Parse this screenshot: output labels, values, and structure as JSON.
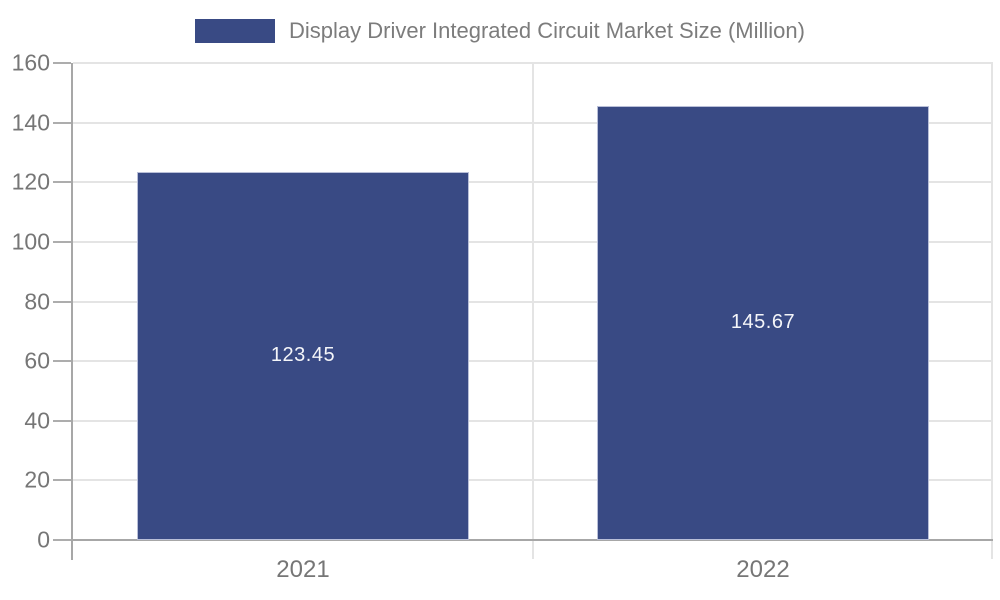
{
  "legend": {
    "label": "Display Driver Integrated Circuit Market Size (Million)"
  },
  "chart_data": {
    "type": "bar",
    "title": "Display Driver Integrated Circuit Market Size (Million)",
    "categories": [
      "2021",
      "2022"
    ],
    "values": [
      123.45,
      145.67
    ],
    "value_labels": [
      "123.45",
      "145.67"
    ],
    "series": [
      {
        "name": "Display Driver Integrated Circuit Market Size (Million)",
        "values": [
          123.45,
          145.67
        ]
      }
    ],
    "xlabel": "",
    "ylabel": "",
    "ylim": [
      0,
      160
    ],
    "yticks": [
      0,
      20,
      40,
      60,
      80,
      100,
      120,
      140,
      160
    ],
    "grid": true,
    "legend_position": "top-center",
    "value_label_position": "inside-center"
  },
  "colors": {
    "bar": "#394A84",
    "bar_border": "#B9BFD8",
    "grid": "#E4E4E4",
    "axis": "#A7A7A7",
    "tick": "#ADADAD",
    "text": "#767676",
    "legend_text": "#7C7C7C",
    "value_text": "#F4F5F9",
    "background": "#FFFFFF"
  }
}
